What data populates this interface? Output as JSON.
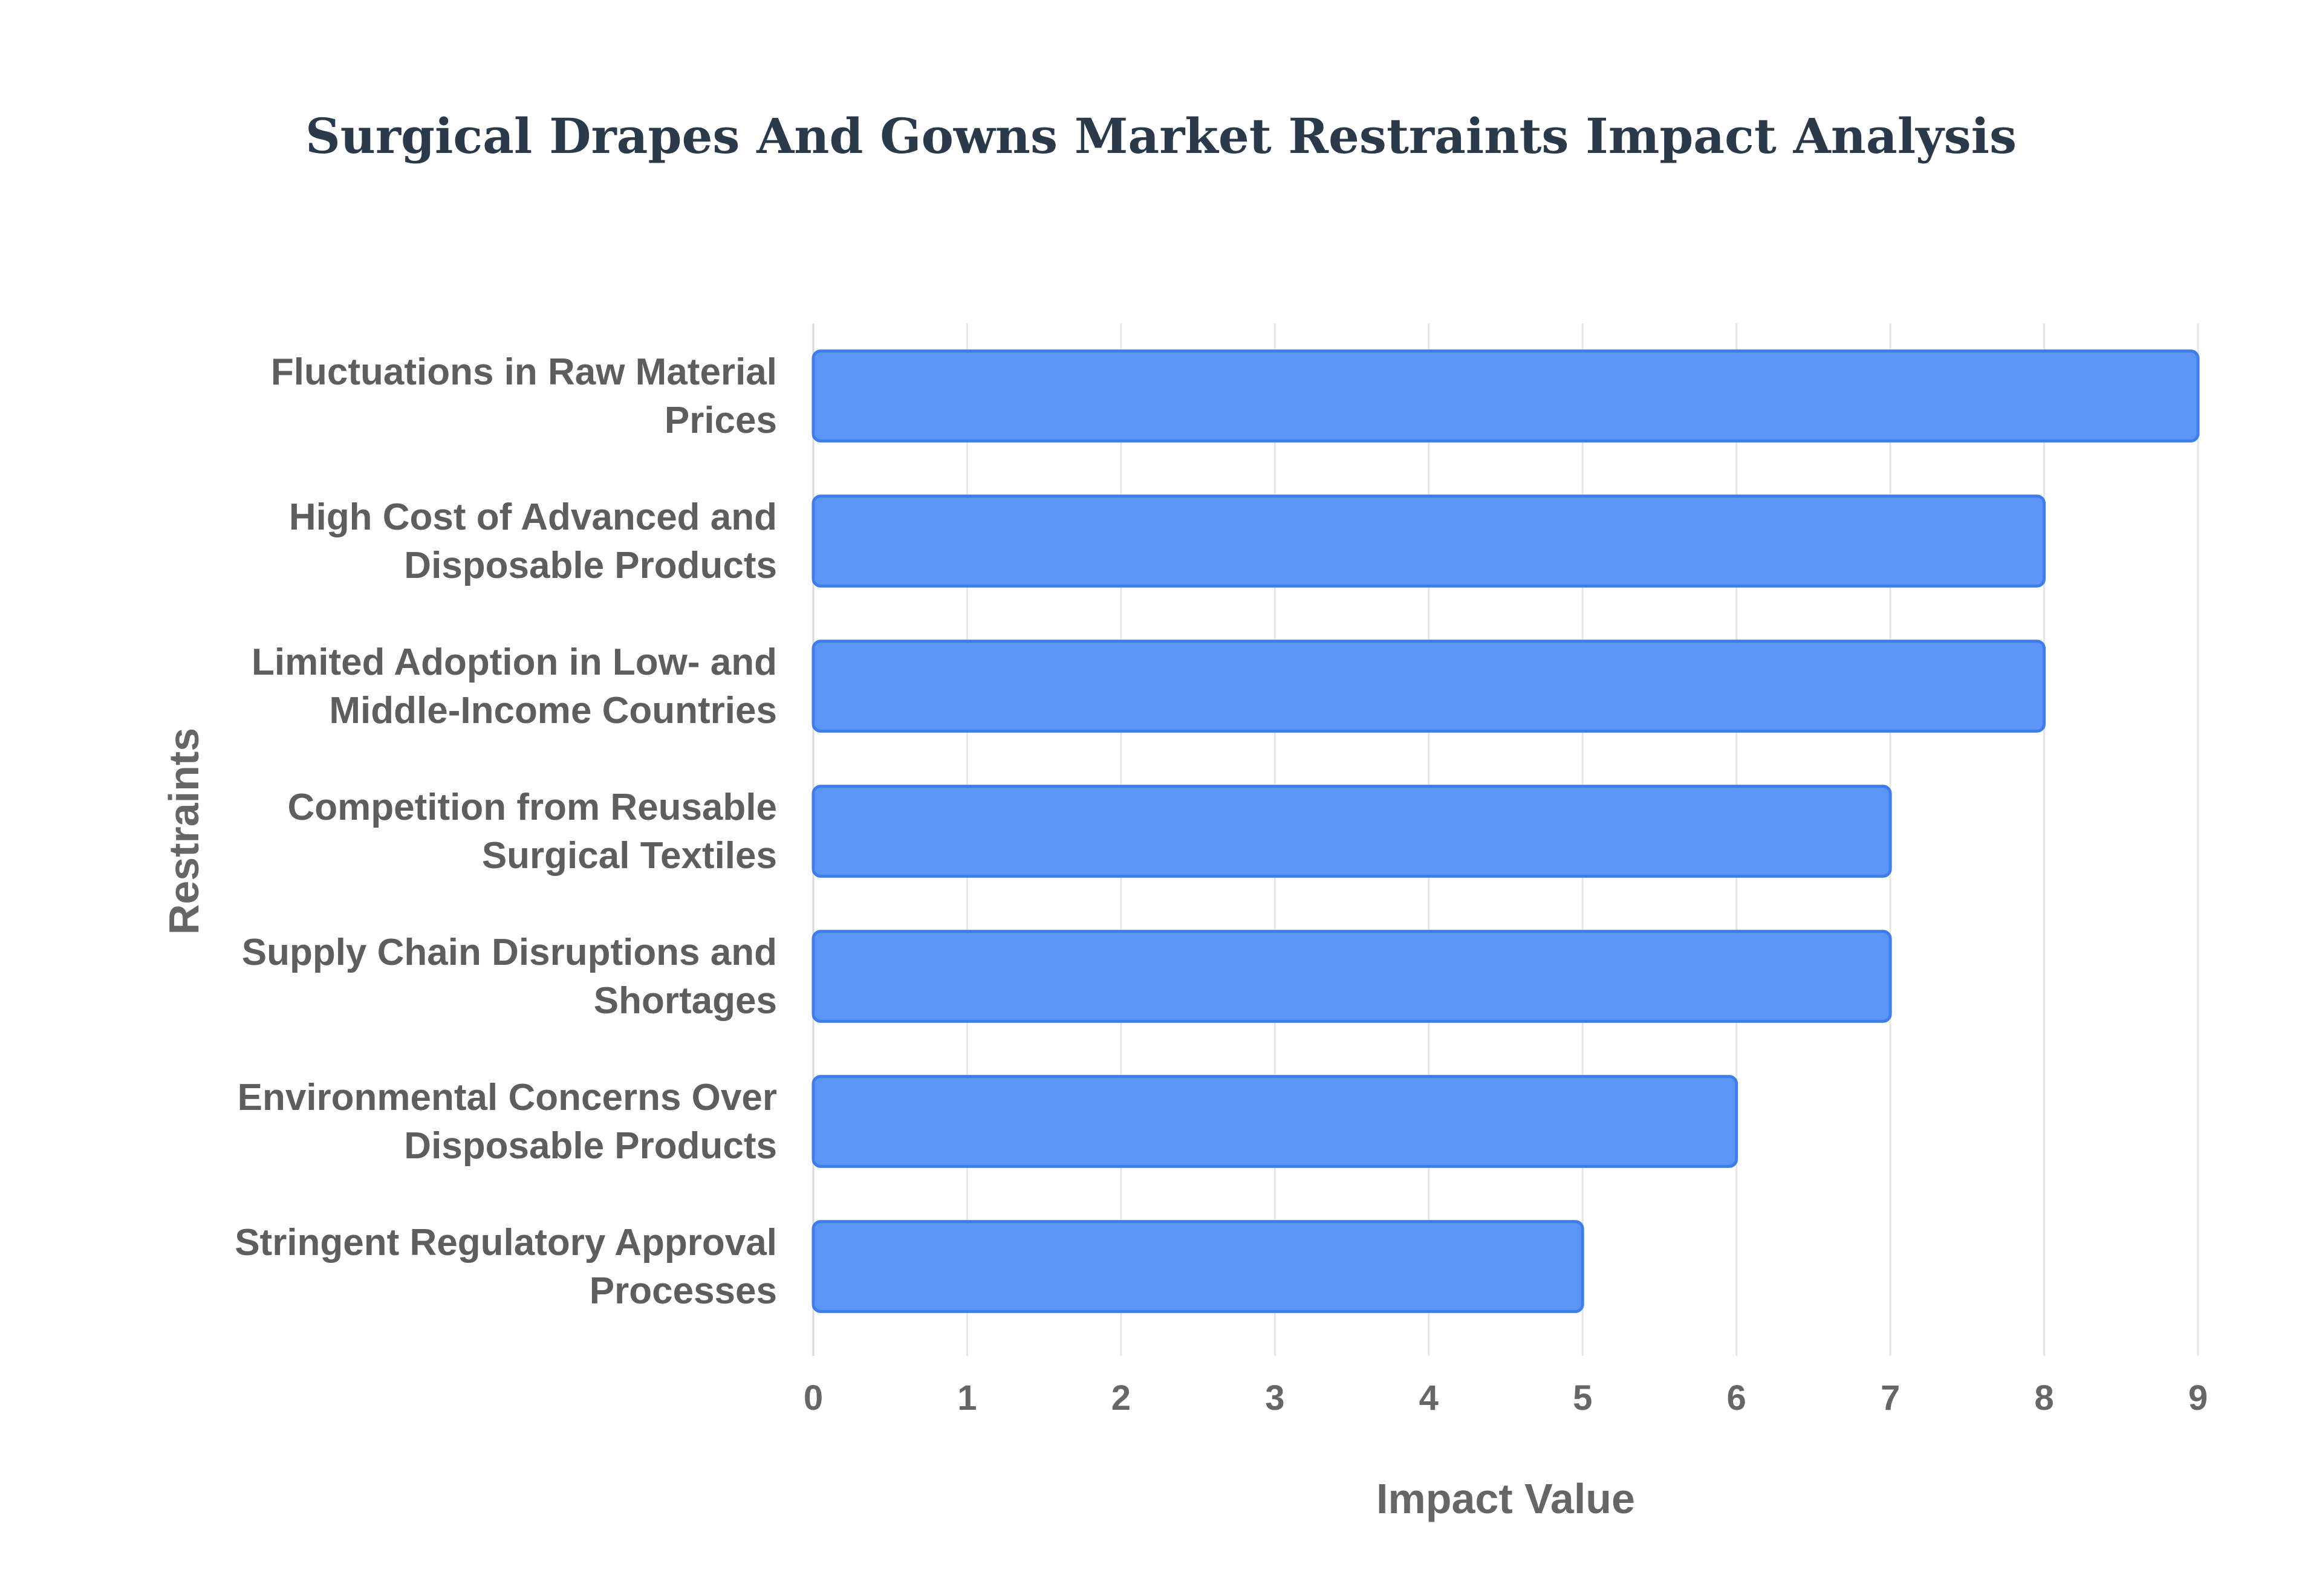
{
  "chart_data": {
    "type": "bar",
    "orientation": "horizontal",
    "title": "Surgical Drapes And Gowns Market Restraints Impact Analysis",
    "xlabel": "Impact Value",
    "ylabel": "Restraints",
    "xlim": [
      0,
      9
    ],
    "xticks": [
      "0",
      "1",
      "2",
      "3",
      "4",
      "5",
      "6",
      "7",
      "8",
      "9"
    ],
    "grid": true,
    "legend": "none",
    "bar_color": "#5b95f5",
    "bar_border_color": "#3f7ee8",
    "categories": [
      [
        "Fluctuations in Raw Material",
        "Prices"
      ],
      [
        "High Cost of Advanced and",
        "Disposable Products"
      ],
      [
        "Limited Adoption in Low- and",
        "Middle-Income Countries"
      ],
      [
        "Competition from Reusable",
        "Surgical Textiles"
      ],
      [
        "Supply Chain Disruptions and",
        "Shortages"
      ],
      [
        "Environmental Concerns Over",
        "Disposable Products"
      ],
      [
        "Stringent Regulatory Approval",
        "Processes"
      ]
    ],
    "values": [
      9,
      8,
      8,
      7,
      7,
      6,
      5
    ]
  }
}
